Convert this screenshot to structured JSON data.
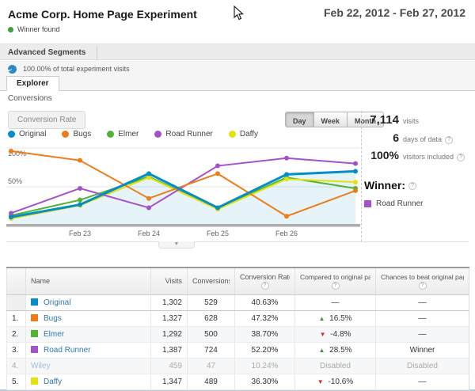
{
  "header": {
    "title": "Acme Corp. Home Page Experiment",
    "status": "Winner found",
    "date_range": "Feb 22, 2012 - Feb 27, 2012"
  },
  "toolbar": {
    "advanced_segments_label": "Advanced Segments",
    "segment_summary": "100.00% of total experiment visits",
    "explorer_tab_label": "Explorer",
    "section_label": "Conversions"
  },
  "chart_controls": {
    "metric_button_label": "Conversion Rate",
    "granularity": [
      "Day",
      "Week",
      "Month"
    ],
    "granularity_selected": "Day"
  },
  "stats": {
    "visits_value": "7,114",
    "visits_label": "visits",
    "days_value": "6",
    "days_label": "days of data",
    "included_value": "100%",
    "included_label": "visitors included",
    "winner_label": "Winner:",
    "winner_name": "Road Runner",
    "winner_color": "#a352cc"
  },
  "chart_data": {
    "type": "line",
    "title": "",
    "ylabel": "Conversion Rate",
    "ylim": [
      0,
      100
    ],
    "yticks": [
      {
        "value": 100,
        "label": "100%"
      },
      {
        "value": 50,
        "label": "50%"
      }
    ],
    "grid": true,
    "legend_position": "top-left",
    "x": [
      "Feb 22",
      "Feb 23",
      "Feb 24",
      "Feb 25",
      "Feb 26",
      "Feb 27"
    ],
    "x_tick_shown": [
      "Feb 23",
      "Feb 24",
      "Feb 25",
      "Feb 26"
    ],
    "series": [
      {
        "name": "Elmer",
        "color": "#50b432",
        "area": false,
        "values": [
          13,
          33,
          63,
          22,
          62,
          48
        ]
      },
      {
        "name": "Daffy",
        "color": "#e3e10e",
        "area": false,
        "values": [
          9,
          26,
          62,
          21,
          60,
          56
        ]
      },
      {
        "name": "Road Runner",
        "color": "#a352cc",
        "area": false,
        "values": [
          16,
          48,
          23,
          77,
          87,
          80
        ]
      },
      {
        "name": "Bugs",
        "color": "#ed7e17",
        "area": false,
        "values": [
          96,
          84,
          35,
          67,
          12,
          45
        ]
      },
      {
        "name": "Original",
        "color": "#058dc7",
        "area": true,
        "values": [
          11,
          27,
          67,
          23,
          66,
          70
        ]
      }
    ],
    "legend_order": [
      "Original",
      "Bugs",
      "Elmer",
      "Road Runner",
      "Daffy"
    ]
  },
  "table": {
    "columns": [
      {
        "label": "Name",
        "align": "al",
        "help": false,
        "small": false
      },
      {
        "label": "Visits",
        "align": "ar",
        "help": false,
        "small": false
      },
      {
        "label": "Conversions",
        "align": "ac",
        "help": false,
        "small": false
      },
      {
        "label": "Conversion Rate",
        "align": "ac",
        "help": true,
        "small": false
      },
      {
        "label": "Compared to original page",
        "align": "ac",
        "help": true,
        "small": true
      },
      {
        "label": "Chances to beat original page",
        "align": "ac",
        "help": true,
        "small": true
      }
    ],
    "rows": [
      {
        "rank": "",
        "name": "Original",
        "color": "#058dc7",
        "visits": "1,302",
        "conversions": "529",
        "rate": "40.63%",
        "compared": "—",
        "compared_dir": "none",
        "chances": "—",
        "disabled": false
      },
      {
        "rank": "1.",
        "name": "Bugs",
        "color": "#ed7e17",
        "visits": "1,327",
        "conversions": "628",
        "rate": "47.32%",
        "compared": "16.5%",
        "compared_dir": "up",
        "chances": "—",
        "disabled": false
      },
      {
        "rank": "2.",
        "name": "Elmer",
        "color": "#50b432",
        "visits": "1,292",
        "conversions": "500",
        "rate": "38.70%",
        "compared": "-4.8%",
        "compared_dir": "down",
        "chances": "—",
        "disabled": false
      },
      {
        "rank": "3.",
        "name": "Road Runner",
        "color": "#a352cc",
        "visits": "1,387",
        "conversions": "724",
        "rate": "52.20%",
        "compared": "28.5%",
        "compared_dir": "up",
        "chances": "Winner",
        "disabled": false
      },
      {
        "rank": "4.",
        "name": "Wiley",
        "color": "",
        "visits": "459",
        "conversions": "47",
        "rate": "10.24%",
        "compared": "Disabled",
        "compared_dir": "none",
        "chances": "Disabled",
        "disabled": true
      },
      {
        "rank": "5.",
        "name": "Daffy",
        "color": "#e3e10e",
        "visits": "1,347",
        "conversions": "489",
        "rate": "36.30%",
        "compared": "-10.6%",
        "compared_dir": "down",
        "chances": "—",
        "disabled": false
      }
    ]
  }
}
